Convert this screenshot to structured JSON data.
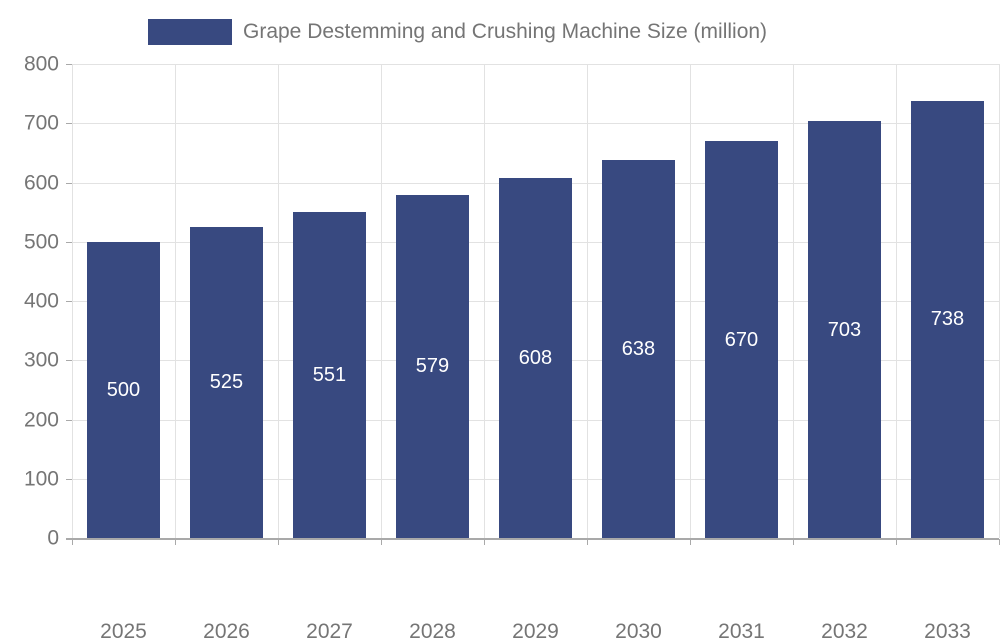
{
  "legend": {
    "label": "Grape Destemming and Crushing Machine Size (million)",
    "swatch_color": "#384980"
  },
  "chart_data": {
    "type": "bar",
    "title": "Grape Destemming and Crushing Machine Size (million)",
    "categories": [
      "2025",
      "2026",
      "2027",
      "2028",
      "2029",
      "2030",
      "2031",
      "2032",
      "2033"
    ],
    "values": [
      500,
      525,
      551,
      579,
      608,
      638,
      670,
      703,
      738
    ],
    "xlabel": "",
    "ylabel": "",
    "ylim": [
      0,
      800
    ],
    "ytick_step": 100,
    "ytick_labels": [
      "0",
      "100",
      "200",
      "300",
      "400",
      "500",
      "600",
      "700",
      "800"
    ],
    "grid": true,
    "legend_position": "top",
    "bar_color": "#384980",
    "bar_label_color": "#ffffff",
    "axis_color": "#a9a9a9",
    "grid_color": "#e2e2e2",
    "tick_label_color": "#757575"
  }
}
